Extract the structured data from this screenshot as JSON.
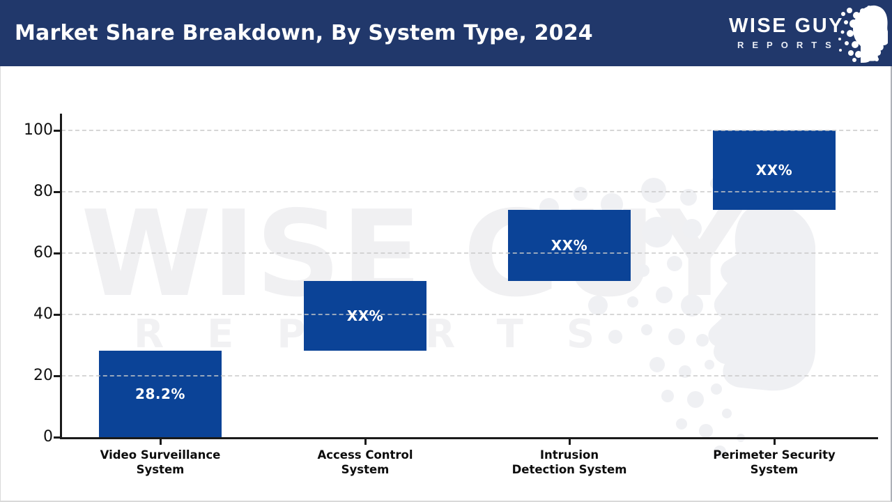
{
  "header": {
    "title": "Market Share Breakdown, By System Type, 2024",
    "bg_color": "#21386B",
    "logo": {
      "name": "WISE GUY",
      "sub": "REPORTS"
    }
  },
  "watermark": {
    "name": "WISE GUY",
    "sub": "REPORTS"
  },
  "chart_data": {
    "type": "bar",
    "subtype": "waterfall",
    "title": "Market Share Breakdown, By System Type, 2024",
    "categories": [
      "Video Surveillance System",
      "Access Control System",
      "Intrusion Detection System",
      "Perimeter Security System"
    ],
    "category_label_lines": [
      [
        "Video Surveillance",
        "System"
      ],
      [
        "Access Control",
        "System"
      ],
      [
        "Intrusion",
        "Detection System"
      ],
      [
        "Perimeter Security",
        "System"
      ]
    ],
    "segments": [
      {
        "category": "Video Surveillance System",
        "start": 0,
        "end": 28.2,
        "label": "28.2%"
      },
      {
        "category": "Access Control System",
        "start": 28.2,
        "end": 51,
        "label": "XX%"
      },
      {
        "category": "Intrusion Detection System",
        "start": 51,
        "end": 74,
        "label": "XX%"
      },
      {
        "category": "Perimeter Security System",
        "start": 74,
        "end": 100,
        "label": "XX%"
      }
    ],
    "xlabel": "",
    "ylabel": "",
    "ylim": [
      0,
      100
    ],
    "yticks": [
      0,
      20,
      40,
      60,
      80,
      100
    ],
    "grid": true,
    "grid_style": "dashed",
    "grid_above_bars": true,
    "legend": false,
    "bar_color": "#0B4397",
    "bar_label_color": "#FFFFFF",
    "axis_color": "#1A1A1A",
    "gridline_color": "#CDCDCD"
  }
}
